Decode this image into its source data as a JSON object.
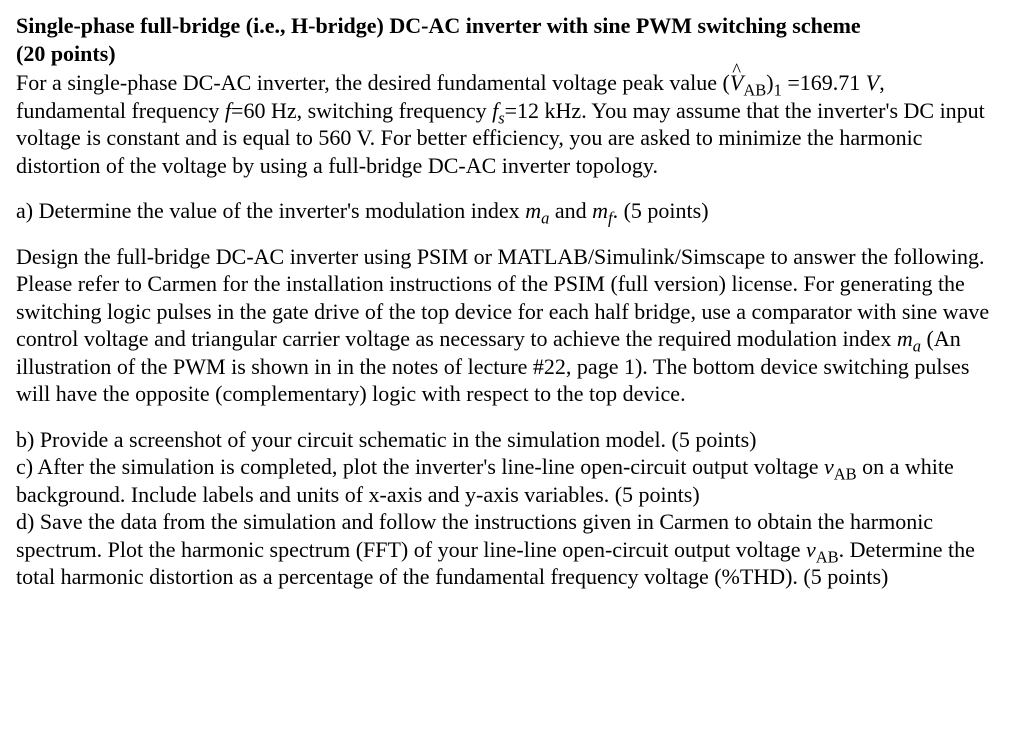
{
  "title": {
    "bold_line": "Single-phase full-bridge (i.e., H-bridge) DC-AC inverter with sine PWM switching scheme",
    "points_line": "(20 points)"
  },
  "intro": {
    "pre_vab": "For a single-phase DC-AC inverter, the desired fundamental voltage peak value (",
    "vab_sub": "AB",
    "post_vab_sub": ")",
    "vab_sub2": "1",
    "eq1": " =169.71 ",
    "v_post": ", fundamental frequency ",
    "f_eq": "=60 Hz",
    "sw_txt": ", switching frequency ",
    "fs_sub": "s",
    "fs_eq": "=12 kHz",
    "rest": ". You may assume that the inverter's DC input voltage is constant and is equal to 560 V. For better efficiency, you are asked to minimize the harmonic distortion of the voltage by using a full-bridge DC-AC inverter topology."
  },
  "part_a": {
    "pre": "a) Determine the value of the inverter's modulation index ",
    "ma": "m",
    "ma_sub": "a",
    "and_txt": " and ",
    "mf": "m",
    "mf_sub": "f",
    "post": ". (5 points)"
  },
  "design": {
    "p1": "Design the full-bridge DC-AC inverter using PSIM or MATLAB/Simulink/Simscape to answer the following. Please refer to Carmen for the installation instructions of the PSIM (full version) license. For generating the switching logic pulses in the gate drive of the top device for each half bridge, use a comparator with sine wave control voltage and triangular carrier voltage as necessary to achieve the required modulation index ",
    "ma": "m",
    "ma_sub": "a",
    "p2": " (An illustration of the PWM is shown in in the notes of lecture #22, page 1). The bottom device switching pulses will have the opposite (complementary) logic with respect to the top device."
  },
  "part_b": {
    "text": "b) Provide a screenshot of your circuit schematic in the simulation model. (5 points)"
  },
  "part_c": {
    "pre": "c) After the simulation is completed, plot the inverter's line-line open-circuit output voltage ",
    "v": "v",
    "v_sub": "AB",
    "post": " on a white background. Include labels and units of x-axis and y-axis variables. (5 points)"
  },
  "part_d": {
    "pre": "d) Save the data from the simulation and follow the instructions given in Carmen to obtain the harmonic spectrum. Plot the harmonic spectrum (FFT) of your line-line open-circuit output voltage ",
    "v": "v",
    "v_sub": "AB",
    "post": ". Determine the total harmonic distortion as a percentage of the fundamental frequency voltage (%THD). (5 points)"
  }
}
